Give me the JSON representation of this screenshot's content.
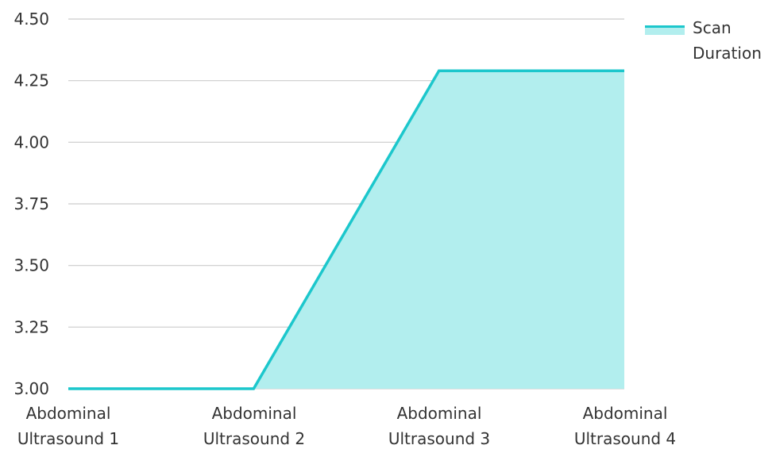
{
  "chart_data": {
    "type": "area",
    "categories": [
      [
        "Abdominal",
        "Ultrasound 1"
      ],
      [
        "Abdominal",
        "Ultrasound 2"
      ],
      [
        "Abdominal",
        "Ultrasound 3"
      ],
      [
        "Abdominal",
        "Ultrasound 4"
      ]
    ],
    "series": [
      {
        "name": "Scan Duration",
        "legend_lines": [
          "Scan",
          "Duration"
        ],
        "values": [
          3.0,
          3.0,
          4.29,
          4.29
        ],
        "line_color": "#1cc7cc",
        "fill_color": "#b2eeee"
      }
    ],
    "ylim": [
      3.0,
      4.5
    ],
    "yticks": [
      "3.00",
      "3.25",
      "3.50",
      "3.75",
      "4.00",
      "4.25",
      "4.50"
    ],
    "grid": true,
    "legend_position": "top-right",
    "grid_color": "#cccccc"
  }
}
